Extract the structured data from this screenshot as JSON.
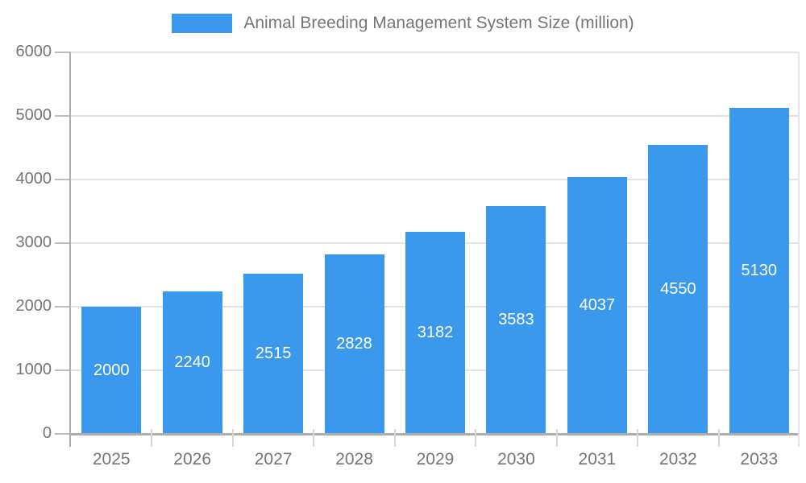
{
  "chart_data": {
    "type": "bar",
    "title": "Animal Breeding Management System Size (million)",
    "categories": [
      "2025",
      "2026",
      "2027",
      "2028",
      "2029",
      "2030",
      "2031",
      "2032",
      "2033"
    ],
    "values": [
      2000,
      2240,
      2515,
      2828,
      3182,
      3583,
      4037,
      4550,
      5130
    ],
    "xlabel": "",
    "ylabel": "",
    "ylim": [
      0,
      6000
    ],
    "yticks": [
      0,
      1000,
      2000,
      3000,
      4000,
      5000,
      6000
    ],
    "grid": true,
    "legend_position": "top",
    "bar_value_label_position": "inside-center",
    "colors": {
      "bar": "#3A99ED",
      "bar_label": "#FFFFFF",
      "axis_text": "#757575",
      "legend_text": "#757575",
      "axis_line": "#ADADAD",
      "grid_line": "#E3E3E3",
      "y_tick": "#BDBDBD",
      "x_tick": "#D6D6D6",
      "background": "#FFFFFF"
    }
  }
}
